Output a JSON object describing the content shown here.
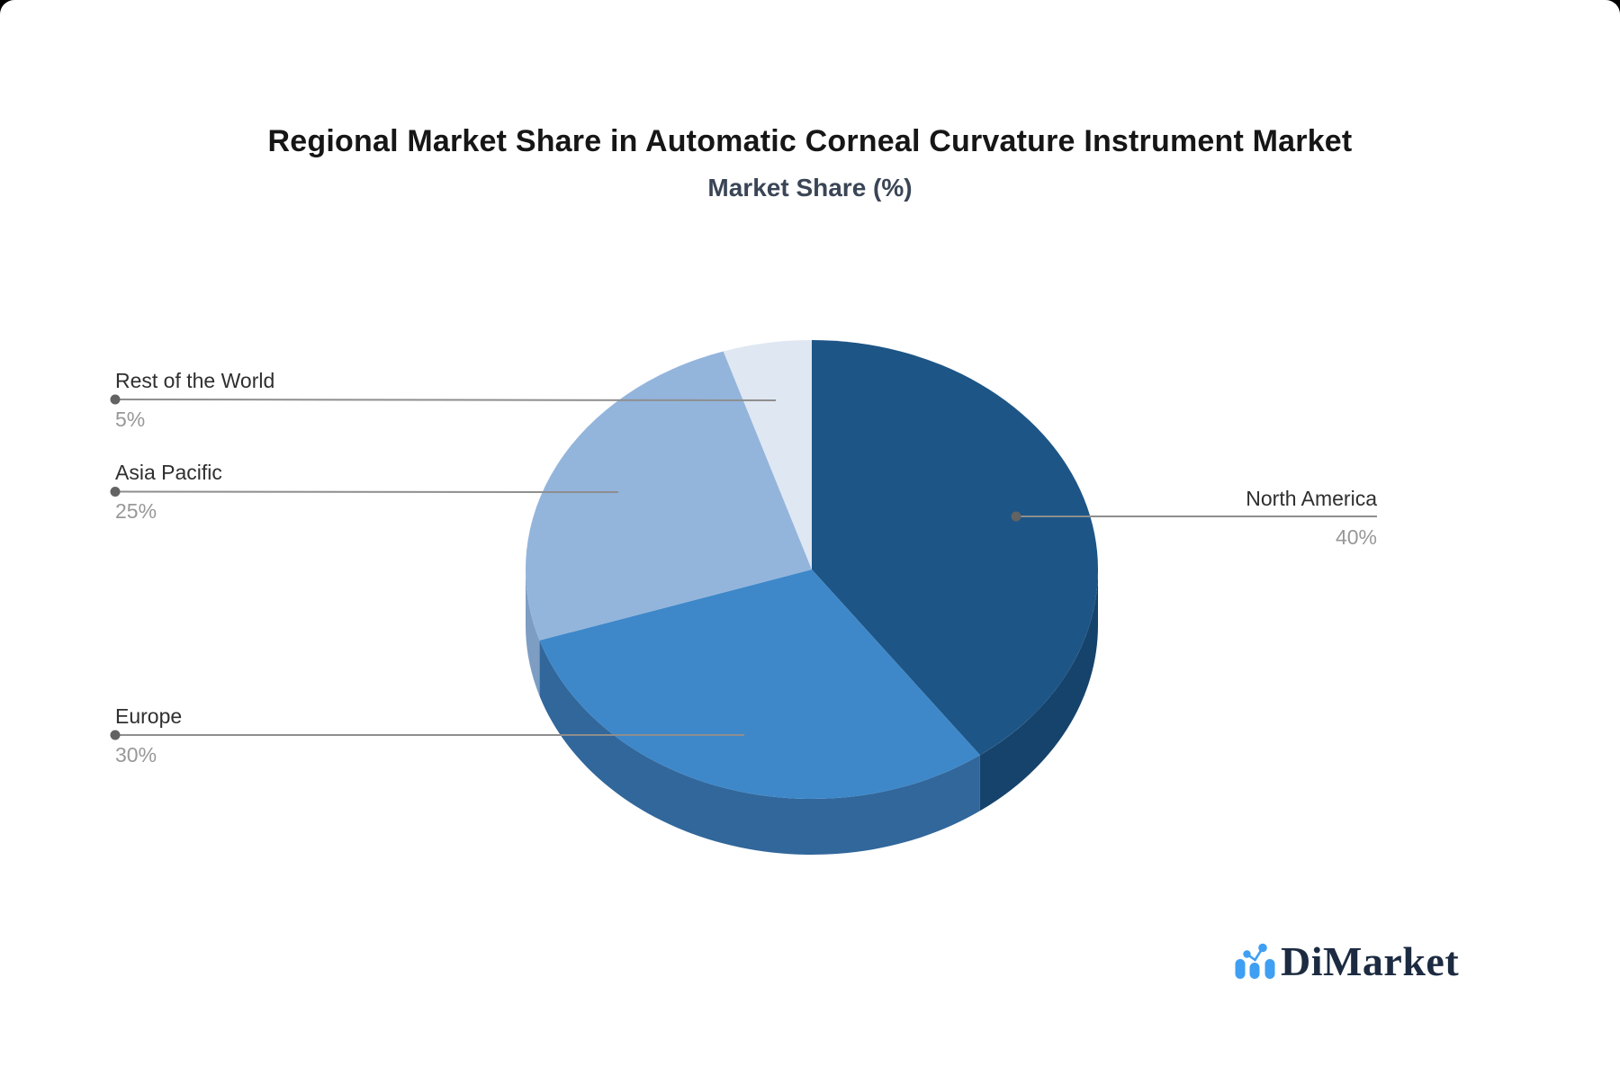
{
  "page": {
    "background": "#000000",
    "canvas_background": "#ffffff"
  },
  "title": "Regional Market Share in Automatic Corneal Curvature Instrument Market",
  "subtitle": "Market Share (%)",
  "brand": {
    "name": "DiMarket",
    "icon": "bar-line-chart-icon",
    "icon_color": "#3f9ff2",
    "text_color": "#1c2b41"
  },
  "chart_data": {
    "type": "pie",
    "style": "3d",
    "title": "Regional Market Share in Automatic Corneal Curvature Instrument Market",
    "subtitle": "Market Share (%)",
    "unit": "%",
    "start_angle_deg": 0,
    "direction": "clockwise",
    "label_style": "callout",
    "slices": [
      {
        "label": "North America",
        "value": 40,
        "display": "40%",
        "color": "#1d5586",
        "side_color": "#16436b"
      },
      {
        "label": "Europe",
        "value": 30,
        "display": "30%",
        "color": "#3e88c9",
        "side_color": "#31679b"
      },
      {
        "label": "Asia Pacific",
        "value": 25,
        "display": "25%",
        "color": "#93b5dc",
        "side_color": "#7d9dc3"
      },
      {
        "label": "Rest of the World",
        "value": 5,
        "display": "5%",
        "color": "#dfe7f2",
        "side_color": "#b6c3d6"
      }
    ],
    "callout_line_color": "#8e8e8e",
    "callout_dot_color": "#636363",
    "label_color": "#2f2f2f",
    "value_color": "#98989a"
  }
}
